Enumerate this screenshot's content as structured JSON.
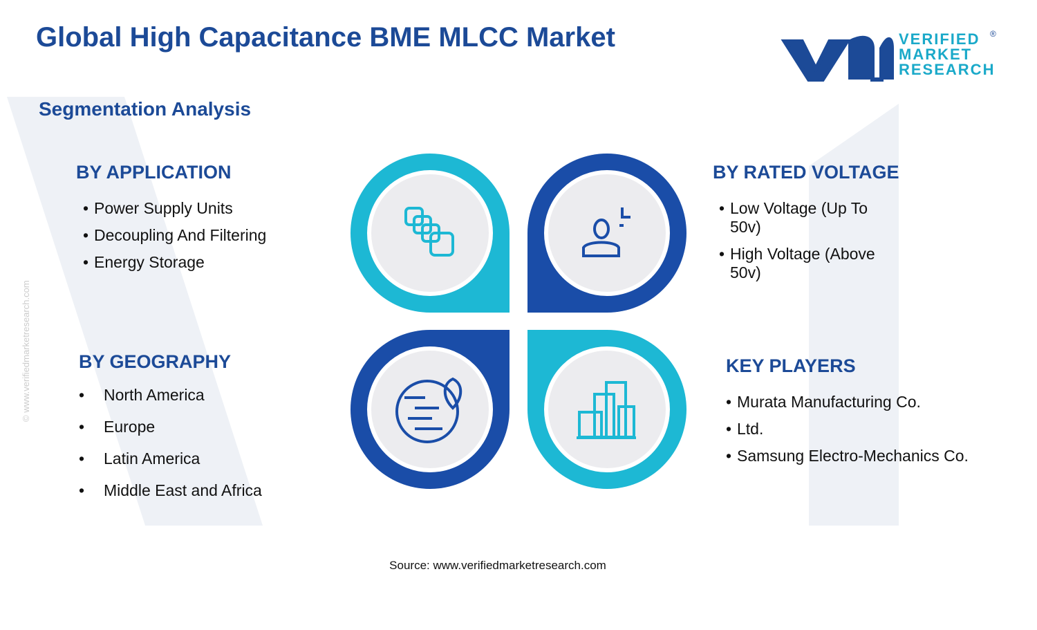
{
  "header": {
    "title": "Global High Capacitance BME MLCC Market",
    "subtitle": "Segmentation Analysis"
  },
  "logo": {
    "line1": "VERIFIED",
    "line2": "MARKET",
    "line3": "RESEARCH",
    "mark": "®"
  },
  "segments": [
    {
      "heading": "BY APPLICATION",
      "items": [
        "Power Supply Units",
        "Decoupling And Filtering",
        "Energy Storage"
      ]
    },
    {
      "heading": "BY RATED VOLTAGE",
      "items": [
        "Low Voltage (Up To 50v)",
        "High Voltage (Above 50v)"
      ]
    },
    {
      "heading": "BY GEOGRAPHY",
      "items": [
        "North America",
        "Europe",
        "Latin America",
        "Middle East and Africa"
      ]
    },
    {
      "heading": "KEY PLAYERS",
      "items": [
        "Murata Manufacturing Co.",
        "Ltd.",
        "Samsung Electro-Mechanics Co."
      ]
    }
  ],
  "source": "Source: www.verifiedmarketresearch.com",
  "watermark": "© www.verifiedmarketresearch.com"
}
